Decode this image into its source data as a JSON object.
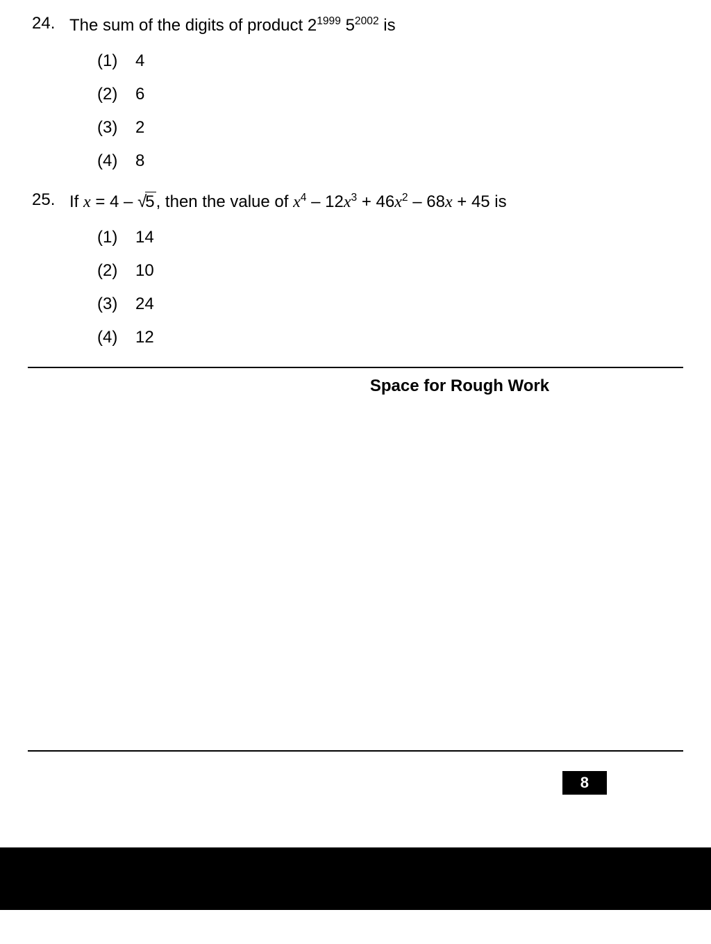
{
  "questions": [
    {
      "number": "24.",
      "text_pre": "The sum of the digits of product 2",
      "sup1": "1999",
      "mid": " 5",
      "sup2": "2002",
      "text_post": " is",
      "options": [
        {
          "label": "(1)",
          "value": "4"
        },
        {
          "label": "(2)",
          "value": "6"
        },
        {
          "label": "(3)",
          "value": "2"
        },
        {
          "label": "(4)",
          "value": "8"
        }
      ]
    },
    {
      "number": "25.",
      "poly_pre": "If ",
      "poly_x": "x",
      "poly_eq": " = 4 – ",
      "poly_rad": "5",
      "poly_comma": ", then the value of ",
      "term1_var": "x",
      "term1_sup": "4",
      "term2_coef": " – 12",
      "term2_var": "x",
      "term2_sup": "3",
      "term3_coef": " + 46",
      "term3_var": "x",
      "term3_sup": "2",
      "term4_coef": " – 68",
      "term4_var": "x",
      "term5": " + 45 is",
      "options": [
        {
          "label": "(1)",
          "value": "14"
        },
        {
          "label": "(2)",
          "value": "10"
        },
        {
          "label": "(3)",
          "value": "24"
        },
        {
          "label": "(4)",
          "value": "12"
        }
      ]
    }
  ],
  "rough_work_label": "Space for Rough Work",
  "page_number": "8"
}
